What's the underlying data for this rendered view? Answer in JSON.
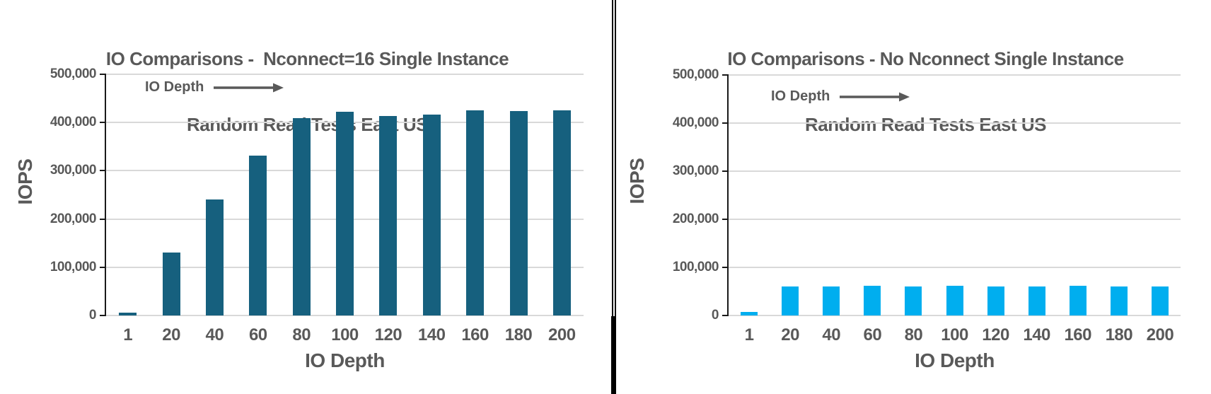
{
  "colors": {
    "text": "#595959",
    "gridline": "#D9D9D9",
    "axis_line": "#1A1A1A",
    "divider": "#000000",
    "background": "#FFFFFF",
    "left_bar": "#16607E",
    "right_bar": "#00AEEF"
  },
  "chart_data": [
    {
      "type": "bar",
      "title": "IO Comparisons -  Nconnect=16 Single Instance",
      "subtitle": "Random Read Tests East US",
      "xlabel": "IO Depth",
      "ylabel": "IOPS",
      "annotation": "IO Depth",
      "legend": "none",
      "grid": true,
      "bar_color": "#16607E",
      "categories": [
        "1",
        "20",
        "40",
        "60",
        "80",
        "100",
        "120",
        "140",
        "160",
        "180",
        "200"
      ],
      "values": [
        6000,
        130000,
        240000,
        331000,
        409000,
        422000,
        414000,
        417000,
        425000,
        424000,
        425000
      ],
      "ylim": [
        0,
        500000
      ],
      "y_tick_step": 100000,
      "y_tick_labels": [
        "0",
        "100,000",
        "200,000",
        "300,000",
        "400,000",
        "500,000"
      ]
    },
    {
      "type": "bar",
      "title": "IO Comparisons - No Nconnect Single Instance",
      "subtitle": "Random Read Tests East US",
      "xlabel": "IO Depth",
      "ylabel": "IOPS",
      "annotation": "IO Depth",
      "legend": "none",
      "grid": true,
      "bar_color": "#00AEEF",
      "categories": [
        "1",
        "20",
        "40",
        "60",
        "80",
        "100",
        "120",
        "140",
        "160",
        "180",
        "200"
      ],
      "values": [
        7000,
        60000,
        60000,
        62000,
        60000,
        62000,
        60000,
        60000,
        62000,
        60000,
        60000
      ],
      "ylim": [
        0,
        500000
      ],
      "y_tick_step": 100000,
      "y_tick_labels": [
        "0",
        "100,000",
        "200,000",
        "300,000",
        "400,000",
        "500,000"
      ]
    }
  ]
}
